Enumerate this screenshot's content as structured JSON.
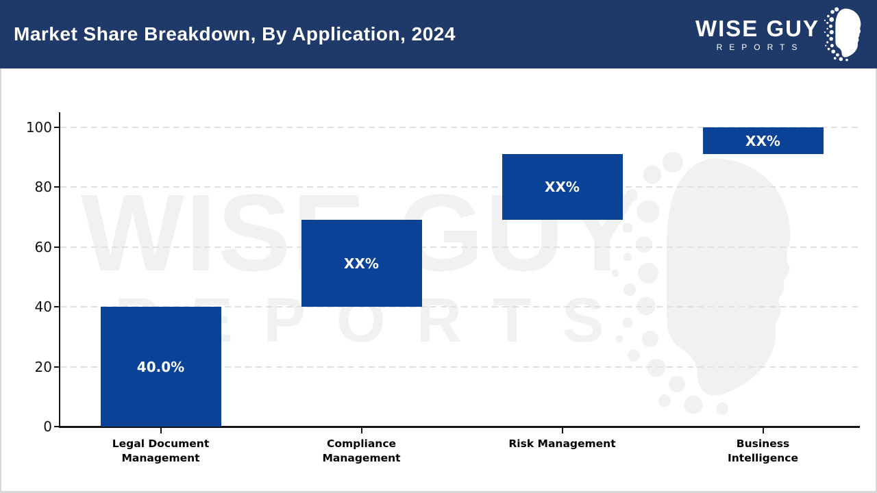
{
  "header": {
    "title": "Market Share Breakdown, By Application, 2024",
    "logo": {
      "line1": "WISE GUY",
      "line2": "REPORTS"
    }
  },
  "watermark": {
    "line1": "WISE GUY",
    "line2": "REPORTS"
  },
  "colors": {
    "header_bg": "#1f3a68",
    "bar_blue": "#0a4298",
    "axis": "#141414",
    "gridline": "#e0e0e0",
    "watermark": "#f1f1f1",
    "content_border": "#d8d8d8",
    "title_text": "#ffffff"
  },
  "chart_data": {
    "type": "bar",
    "variant": "waterfall",
    "title": "Market Share Breakdown, By Application, 2024",
    "categories": [
      "Legal Document Management",
      "Compliance Management",
      "Risk Management",
      "Business Intelligence"
    ],
    "category_label_lines": [
      [
        "Legal Document",
        "Management"
      ],
      [
        "Compliance",
        "Management"
      ],
      [
        "Risk Management"
      ],
      [
        "Business",
        "Intelligence"
      ]
    ],
    "segments": [
      {
        "category": "Legal Document Management",
        "start": 0,
        "end": 40,
        "bar_label": "40.0%"
      },
      {
        "category": "Compliance Management",
        "start": 40,
        "end": 69,
        "bar_label": "XX%"
      },
      {
        "category": "Risk Management",
        "start": 69,
        "end": 91,
        "bar_label": "XX%"
      },
      {
        "category": "Business Intelligence",
        "start": 91,
        "end": 100,
        "bar_label": "XX%"
      }
    ],
    "implied_segment_sizes": [
      40,
      29,
      22,
      9
    ],
    "ylim": [
      0,
      100
    ],
    "yticks": [
      0,
      20,
      40,
      60,
      80,
      100
    ],
    "xlabel": "",
    "ylabel": "",
    "grid": true,
    "grid_style": "dashed",
    "legend": false,
    "bar_color": "#0a4298",
    "masked_label": "XX%"
  }
}
